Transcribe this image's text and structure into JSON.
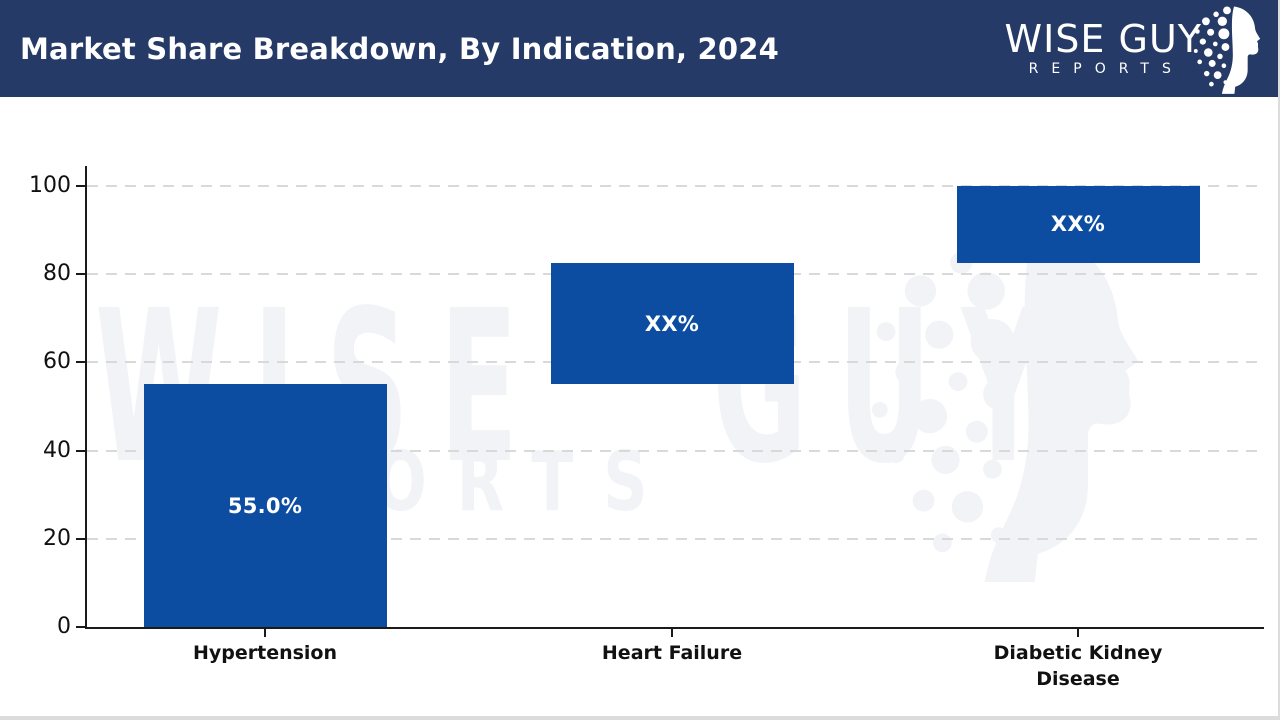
{
  "header": {
    "title": "Market Share Breakdown, By Indication, 2024",
    "logo": {
      "line1": "WISE GUY",
      "line2": "REPORTS"
    },
    "bg_color": "#253a66"
  },
  "watermark": {
    "line1": "WISE GUY",
    "line2": "REPORTS"
  },
  "chart_data": {
    "type": "bar",
    "subtype": "floating-stacked-percentage",
    "title": "Market Share Breakdown, By Indication, 2024",
    "categories": [
      "Hypertension",
      "Heart Failure",
      "Diabetic Kidney\nDisease"
    ],
    "bars": [
      {
        "category": "Hypertension",
        "start": 0,
        "end": 55,
        "label": "55.0%"
      },
      {
        "category": "Heart Failure",
        "start": 55,
        "end": 82.5,
        "label": "XX%"
      },
      {
        "category": "Diabetic Kidney\nDisease",
        "start": 82.5,
        "end": 100,
        "label": "XX%"
      }
    ],
    "yticks": [
      0,
      20,
      40,
      60,
      80,
      100
    ],
    "ylim": [
      0,
      104.5
    ],
    "grid": true,
    "grid_style": "dashed",
    "legend_position": "none",
    "bar_color": "#0c4da2",
    "bar_label_color": "#ffffff",
    "axis_color": "#1a1a1a",
    "gridline_color": "#d9d9d9",
    "xlabel": "",
    "ylabel": ""
  }
}
